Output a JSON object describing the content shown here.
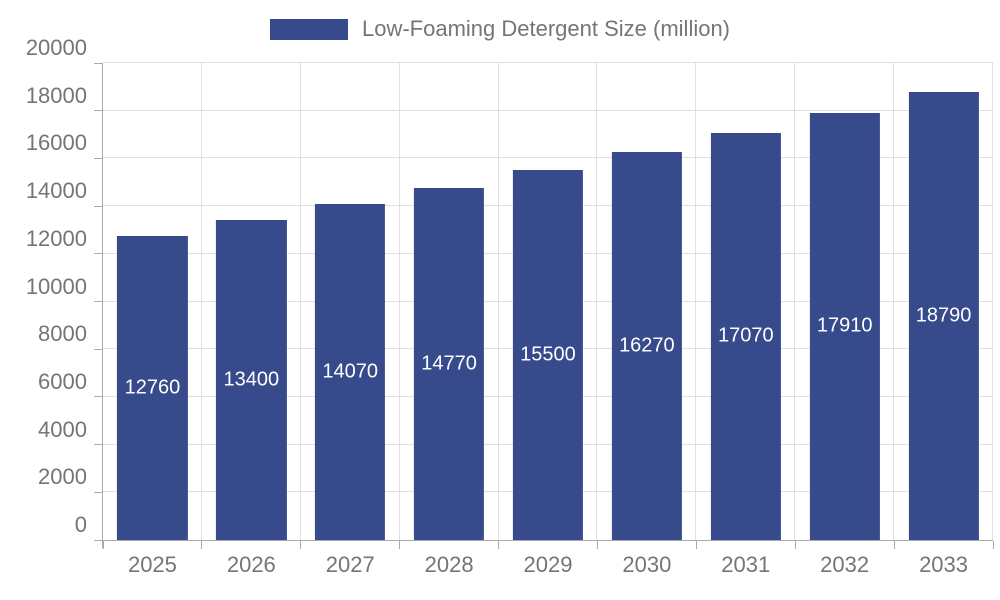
{
  "chart_data": {
    "type": "bar",
    "title": "Low-Foaming Detergent Size (million)",
    "legend": [
      "Low-Foaming Detergent Size (million)"
    ],
    "legend_position": "top",
    "categories": [
      "2025",
      "2026",
      "2027",
      "2028",
      "2029",
      "2030",
      "2031",
      "2032",
      "2033"
    ],
    "values": [
      12760,
      13400,
      14070,
      14770,
      15500,
      16270,
      17070,
      17910,
      18790
    ],
    "xlabel": "",
    "ylabel": "",
    "ylim": [
      0,
      20000
    ],
    "ytick_interval": 2000,
    "grid": true,
    "value_labels": "inside-center-white",
    "colors": {
      "bar": "#364A8C",
      "value_label": "#FFFFFF",
      "grid": "#E0E0E0",
      "axis_line": "#AAAAAA",
      "tick_text": "#757575",
      "legend_text": "#757575",
      "background": "#FFFFFF"
    }
  }
}
